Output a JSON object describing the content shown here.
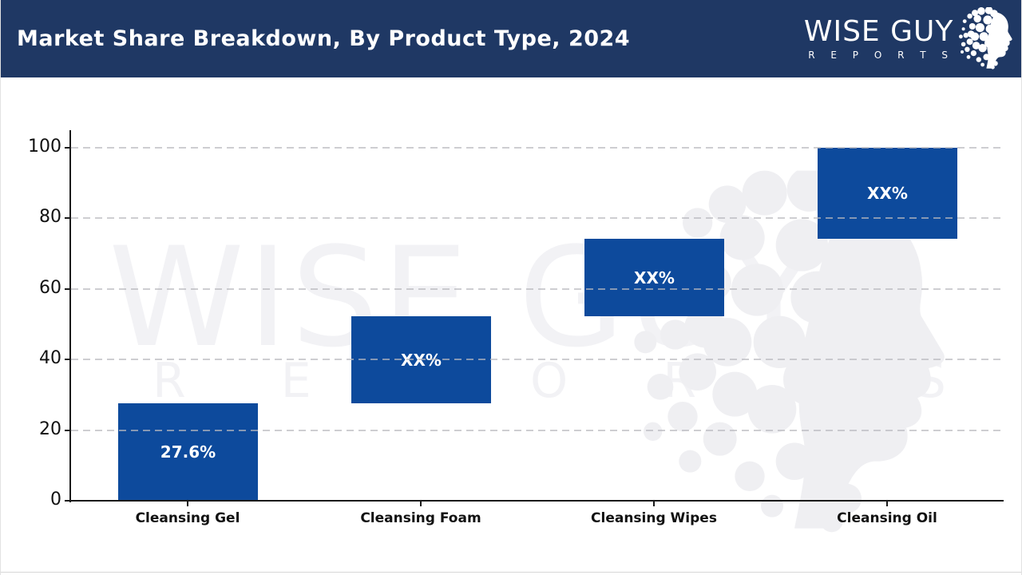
{
  "header": {
    "title": "Market Share Breakdown, By Product Type, 2024",
    "bg_color": "#1f3864",
    "logo": {
      "line1": "WISE GUY",
      "line2": "R E P O R T S"
    }
  },
  "watermark": {
    "line1": "WISE GUY",
    "line2": "R E P O R T S"
  },
  "chart_data": {
    "type": "bar",
    "subtype": "floating-waterfall",
    "title": "Market Share Breakdown, By Product Type, 2024",
    "categories": [
      "Cleansing Gel",
      "Cleansing Foam",
      "Cleansing Wipes",
      "Cleansing Oil"
    ],
    "bars": [
      {
        "category": "Cleansing Gel",
        "start": 0,
        "end": 27.6,
        "label": "27.6%"
      },
      {
        "category": "Cleansing Foam",
        "start": 27.6,
        "end": 52.2,
        "label": "XX%"
      },
      {
        "category": "Cleansing Wipes",
        "start": 52.2,
        "end": 74.2,
        "label": "XX%"
      },
      {
        "category": "Cleansing Oil",
        "start": 74.2,
        "end": 100,
        "label": "XX%"
      }
    ],
    "xlabel": "",
    "ylabel": "",
    "yticks": [
      0,
      20,
      40,
      60,
      80,
      100
    ],
    "ylim": [
      0,
      105
    ],
    "grid": {
      "horizontal": true,
      "style": "dashed",
      "color": "#d9d9d9"
    },
    "legend": "none",
    "bar_color": "#0d4a9c",
    "bar_label_color": "#ffffff",
    "axis_color": "#1a1a1a"
  }
}
